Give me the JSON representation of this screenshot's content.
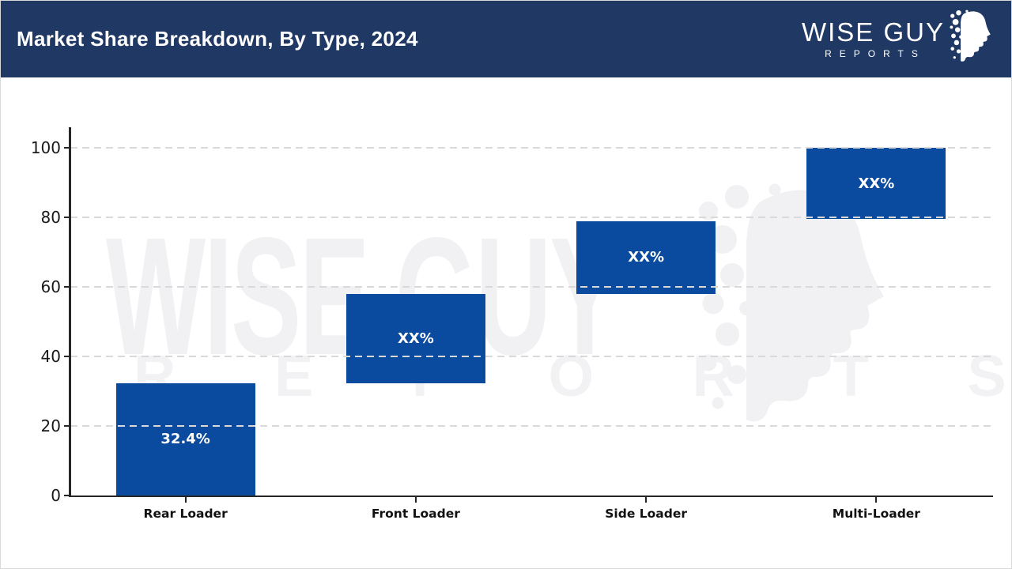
{
  "header": {
    "title": "Market Share Breakdown, By Type, 2024",
    "logo": {
      "wordmark": "WISE GUY",
      "subtitle": "REPORTS"
    }
  },
  "watermark": {
    "wordmark": "WISE GUY",
    "subtitle": "R E P O R T S"
  },
  "chart_data": {
    "type": "bar",
    "subtype": "waterfall",
    "title": "Market Share Breakdown, By Type, 2024",
    "categories": [
      "Rear Loader",
      "Front Loader",
      "Side Loader",
      "Multi-Loader"
    ],
    "segments": [
      {
        "category": "Rear Loader",
        "start": 0,
        "end": 32.4,
        "label": "32.4%"
      },
      {
        "category": "Front Loader",
        "start": 32.4,
        "end": 58,
        "label": "XX%"
      },
      {
        "category": "Side Loader",
        "start": 58,
        "end": 79,
        "label": "XX%"
      },
      {
        "category": "Multi-Loader",
        "start": 79.5,
        "end": 100,
        "label": "XX%"
      }
    ],
    "ylim": [
      0,
      106
    ],
    "yticks": [
      0,
      20,
      40,
      60,
      80,
      100
    ],
    "grid": "horizontal dashed, drawn above bars",
    "legend": "none",
    "bar_color": "#0a4a9f",
    "bar_label_color": "#ffffff",
    "axis_color": "#262626",
    "grid_color": "#d9d9d9",
    "header_bg": "#203864",
    "watermark_color": "#f1f1f3"
  }
}
